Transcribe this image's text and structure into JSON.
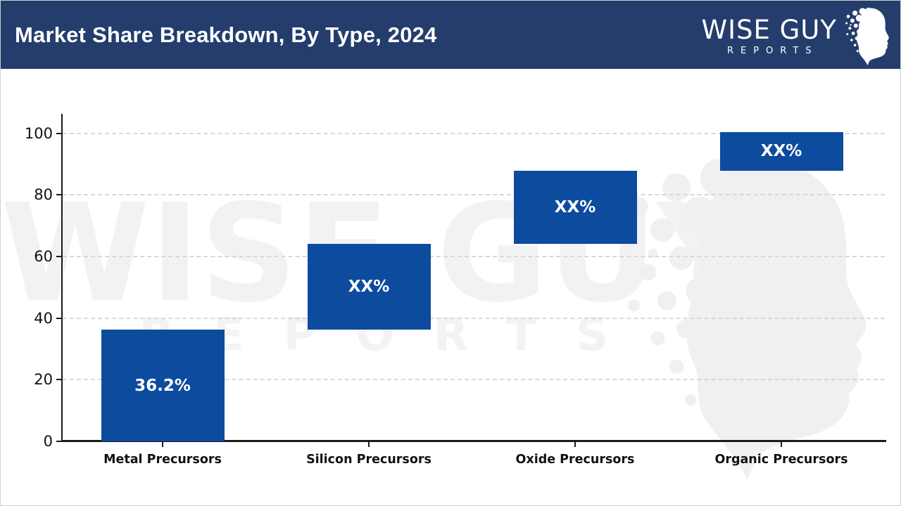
{
  "header": {
    "title": "Market Share Breakdown, By Type, 2024",
    "bg_color": "#243d6d",
    "logo": {
      "wordmark": "WISE GUY",
      "subtext": "REPORTS"
    }
  },
  "watermark": {
    "wordmark": "WISE GUY",
    "subtext": "REPORTS"
  },
  "chart_data": {
    "type": "bar",
    "variant": "waterfall",
    "title": "Market Share Breakdown, By Type, 2024",
    "categories": [
      "Metal Precursors",
      "Silicon Precursors",
      "Oxide Precursors",
      "Organic Precursors"
    ],
    "segments": [
      {
        "category": "Metal Precursors",
        "start": 0,
        "end": 36.2,
        "label": "36.2%"
      },
      {
        "category": "Silicon Precursors",
        "start": 36.2,
        "end": 64.1,
        "label": "XX%"
      },
      {
        "category": "Oxide Precursors",
        "start": 64.1,
        "end": 87.8,
        "label": "XX%"
      },
      {
        "category": "Organic Precursors",
        "start": 87.8,
        "end": 100.4,
        "label": "XX%"
      }
    ],
    "yticks": [
      0,
      20,
      40,
      60,
      80,
      100
    ],
    "ylim": [
      0,
      106
    ],
    "ylabel": "",
    "xlabel": "",
    "grid": {
      "axis": "y",
      "style": "dashed",
      "color": "#d8d8d8"
    },
    "legend": "none",
    "bar_color": "#0c4b9e",
    "bar_label_color": "#ffffff",
    "axis_color": "#1a1a1a",
    "tick_label_color": "#111111"
  }
}
